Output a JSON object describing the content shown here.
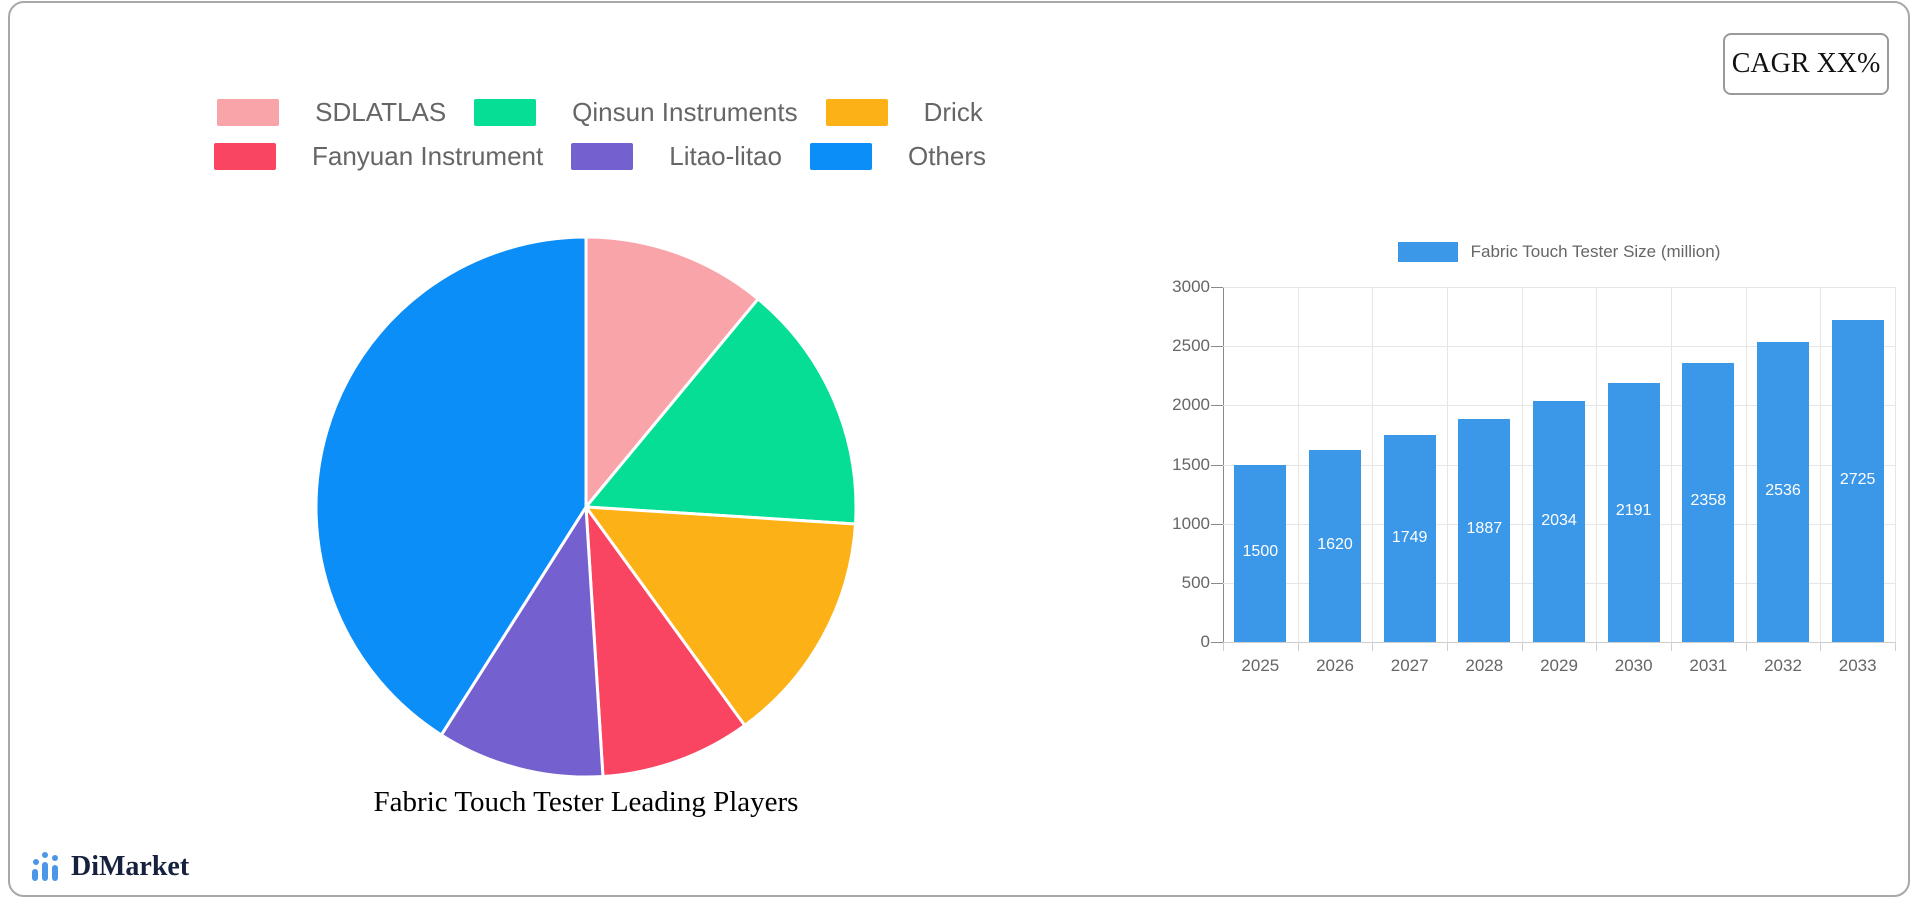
{
  "cagr_badge": {
    "label": "CAGR XX%"
  },
  "logo": {
    "text": "DiMarket",
    "icon_color": "#4c96e9",
    "text_color": "#16213e"
  },
  "chart_data": [
    {
      "type": "pie",
      "title": "Fabric Touch Tester Leading Players",
      "legend_position": "top",
      "direction": "clockwise",
      "start_angle_deg": 0,
      "labels": [
        "SDLATLAS",
        "Qinsun Instruments",
        "Drick",
        "Fanyuan Instrument",
        "Litao-litao",
        "Others"
      ],
      "values_percent": [
        11,
        15,
        14,
        9,
        10,
        41
      ],
      "colors": [
        "#f8a4a9",
        "#05de94",
        "#fcb216",
        "#fa4562",
        "#7560cf",
        "#0c8ef8"
      ],
      "legend_text_color": "#666666",
      "slice_border_color": "#ffffff"
    },
    {
      "type": "bar",
      "legend": "Fabric Touch Tester Size (million)",
      "categories": [
        "2025",
        "2026",
        "2027",
        "2028",
        "2029",
        "2030",
        "2031",
        "2032",
        "2033"
      ],
      "values": [
        1500,
        1620,
        1749,
        1887,
        2034,
        2191,
        2358,
        2536,
        2725
      ],
      "bar_color": "#3b97e8",
      "value_label_color": "#ffffff",
      "value_label_position": "inside-middle",
      "ylim": [
        0,
        3000
      ],
      "yticks": [
        0,
        500,
        1000,
        1500,
        2000,
        2500,
        3000
      ],
      "grid": true,
      "axis_text_color": "#666666"
    }
  ]
}
